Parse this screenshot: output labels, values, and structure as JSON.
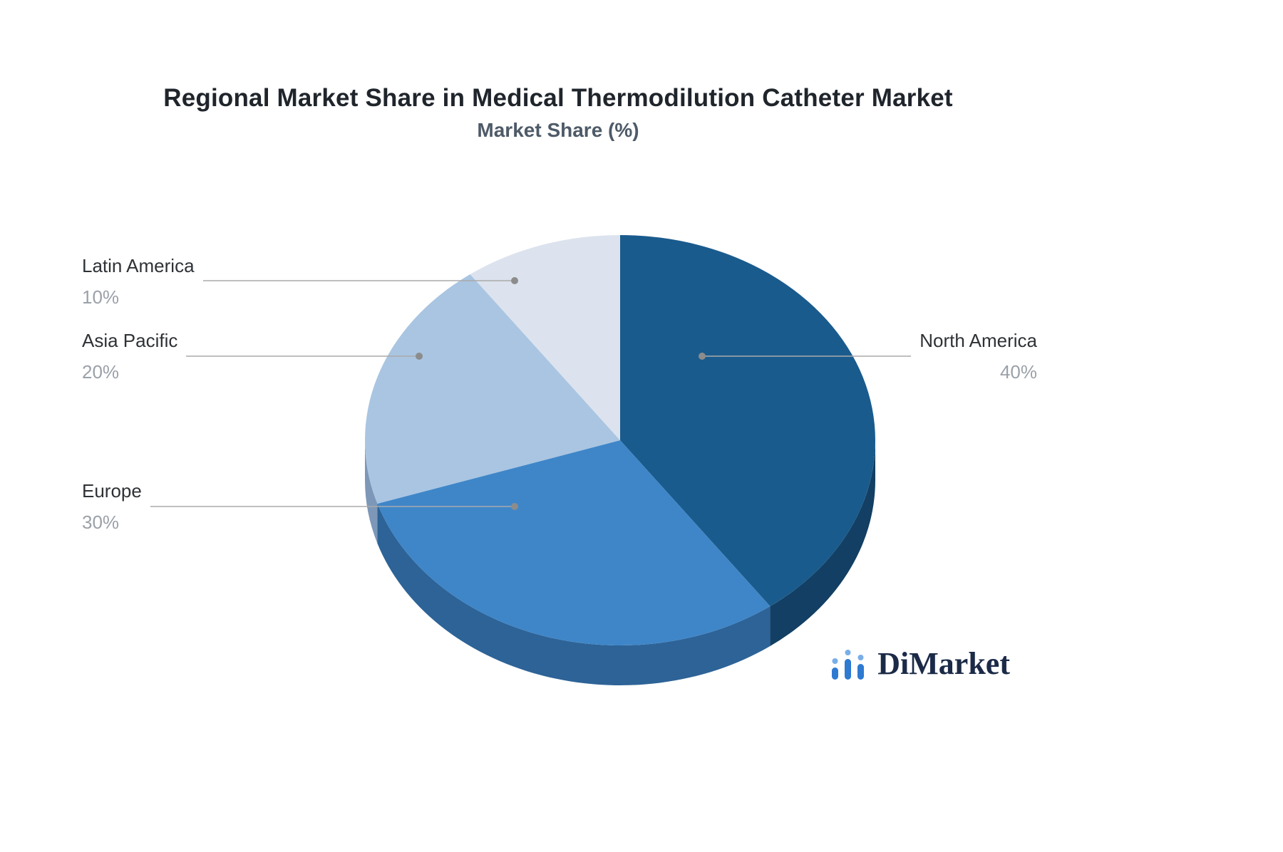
{
  "title": "Regional Market Share in Medical Thermodilution Catheter Market",
  "subtitle": "Market Share (%)",
  "brand": {
    "name": "DiMarket"
  },
  "chart_data": {
    "type": "pie",
    "title": "Regional Market Share in Medical Thermodilution Catheter Market",
    "subtitle": "Market Share (%)",
    "unit": "%",
    "effect": "3d",
    "start_angle_deg": 0,
    "direction": "clockwise",
    "legend_position": "none",
    "labels_shown": true,
    "slices": [
      {
        "label": "North America",
        "value": 40,
        "display_value": "40%",
        "color": "#1a5b8d",
        "side_color": "#123f63"
      },
      {
        "label": "Europe",
        "value": 30,
        "display_value": "30%",
        "color": "#3f86c8",
        "side_color": "#2d6397"
      },
      {
        "label": "Asia Pacific",
        "value": 20,
        "display_value": "20%",
        "color": "#a9c5e2",
        "side_color": "#7d97b8"
      },
      {
        "label": "Latin America",
        "value": 10,
        "display_value": "10%",
        "color": "#dce3ee",
        "side_color": "#b0bac9"
      }
    ]
  },
  "colors": {
    "background": "#ffffff",
    "title": "#20252c",
    "subtitle": "#4e5a68",
    "label": "#2e3236",
    "value": "#9ba1a8",
    "leader_line": "#aaaaaa",
    "leader_dot": "#8c8c8c",
    "brand_text": "#1b2a47",
    "brand_icon_bar": "#2e7ad1",
    "brand_icon_dot": "#79aee8"
  }
}
